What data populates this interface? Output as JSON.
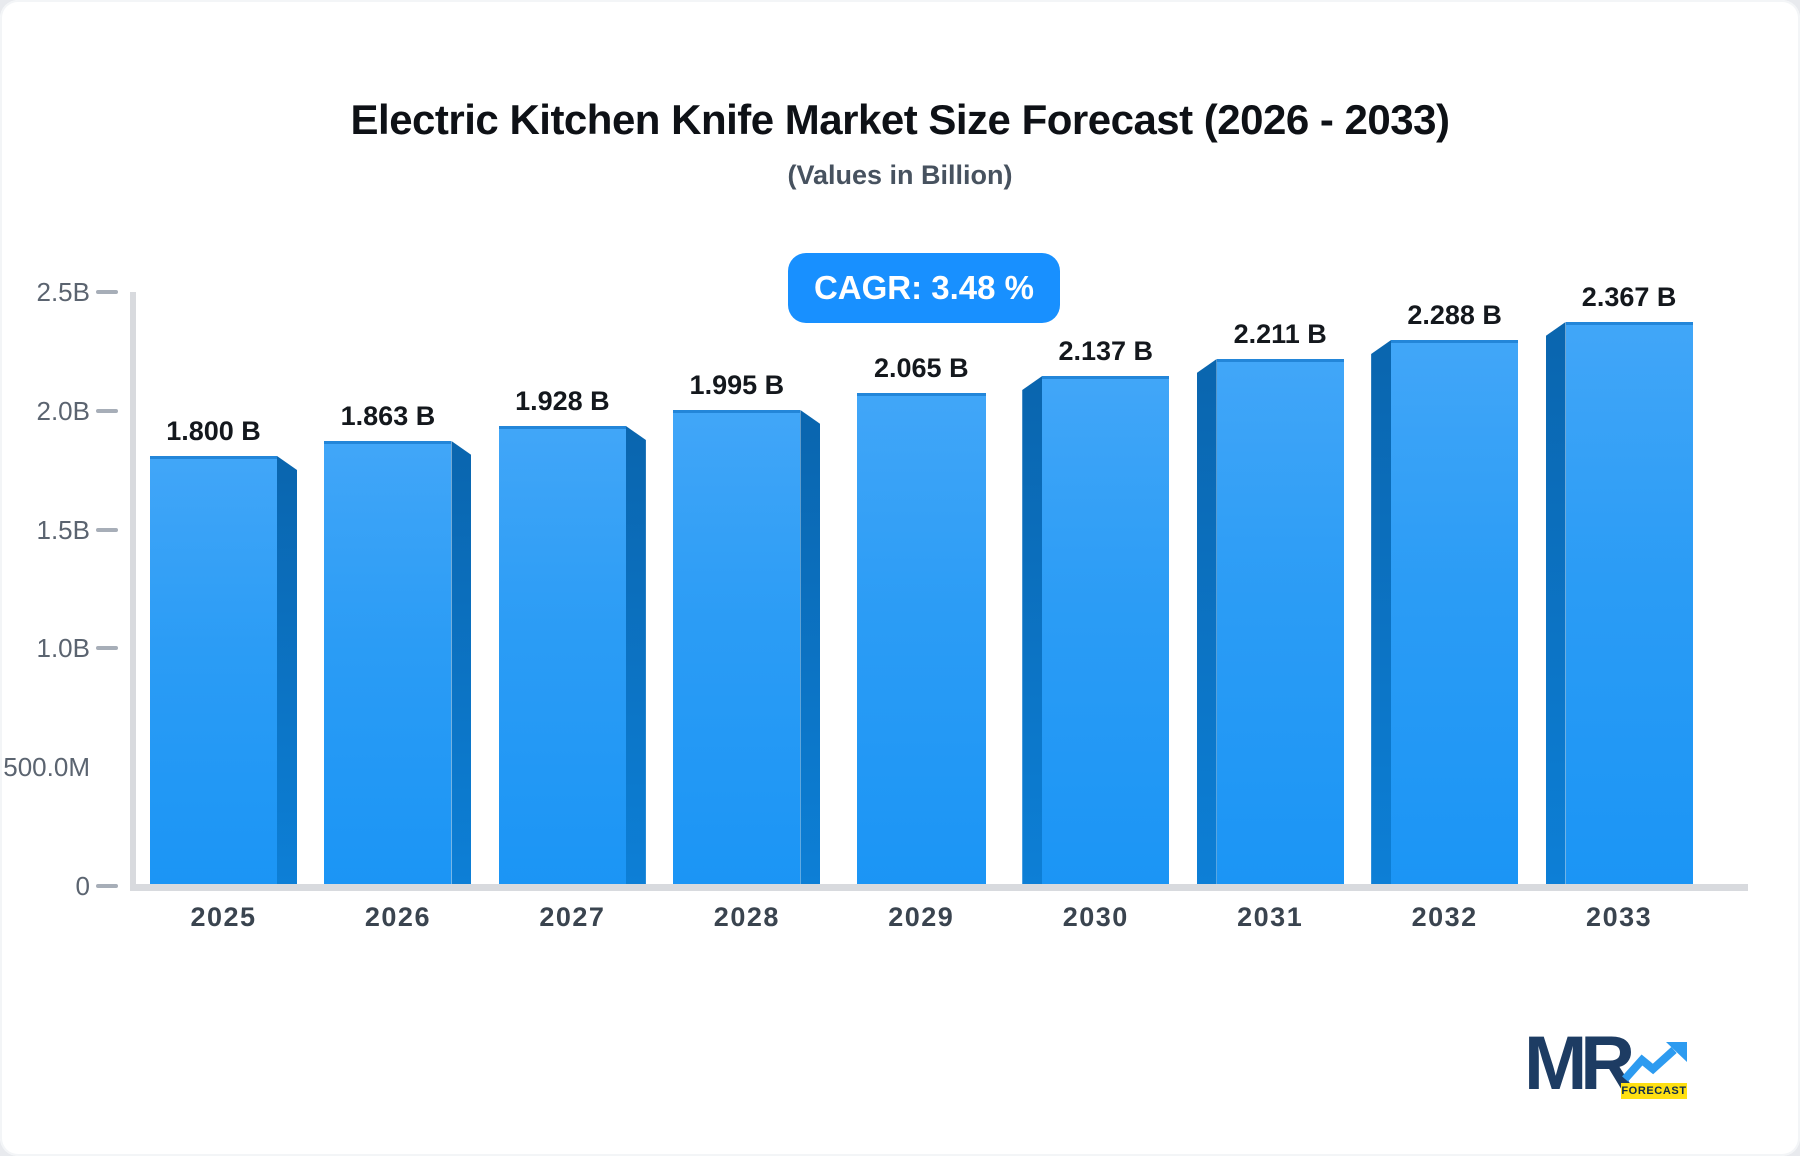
{
  "title": "Electric Kitchen Knife Market Size Forecast (2026 - 2033)",
  "subtitle": "(Values in Billion)",
  "badge": {
    "label": "CAGR: 3.48 %",
    "color": "#1890ff"
  },
  "chart_data": {
    "type": "bar",
    "title": "Electric Kitchen Knife Market Size Forecast (2026 - 2033)",
    "subtitle": "(Values in Billion)",
    "cagr_percent": 3.48,
    "unit": "Billion USD",
    "categories": [
      "2025",
      "2026",
      "2027",
      "2028",
      "2029",
      "2030",
      "2031",
      "2032",
      "2033"
    ],
    "values": [
      1.8,
      1.863,
      1.928,
      1.995,
      2.065,
      2.137,
      2.211,
      2.288,
      2.367
    ],
    "value_labels": [
      "1.800 B",
      "1.863 B",
      "1.928 B",
      "1.995 B",
      "2.065 B",
      "2.137 B",
      "2.211 B",
      "2.288 B",
      "2.367 B"
    ],
    "ylim": [
      0,
      2.5
    ],
    "y_ticks": [
      {
        "label": "2.5B",
        "value": 2.5,
        "dash": true
      },
      {
        "label": "2.0B",
        "value": 2.0,
        "dash": true
      },
      {
        "label": "1.5B",
        "value": 1.5,
        "dash": true
      },
      {
        "label": "1.0B",
        "value": 1.0,
        "dash": true
      },
      {
        "label": "500.0M",
        "value": 0.5,
        "dash": false
      },
      {
        "label": "0",
        "value": 0.0,
        "dash": true
      }
    ],
    "grid": false,
    "legend": false,
    "bar_colors": {
      "face_top": "#41a6f8",
      "face_bottom": "#1b95f5",
      "side_dark": "#0a65ae",
      "side_light": "#0d7fd6"
    }
  },
  "logo": {
    "mr": "MR",
    "forecast": "FORECAST",
    "navy": "#1d3c63",
    "yellow": "#ffe012",
    "arrow_blue": "#2d9bf0"
  }
}
